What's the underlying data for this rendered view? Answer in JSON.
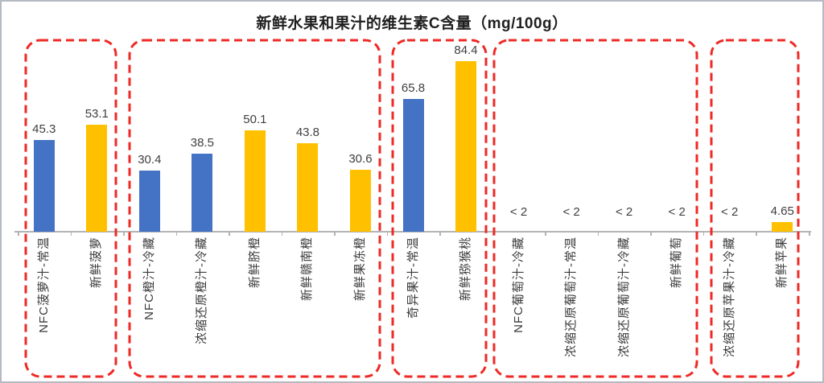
{
  "title": "新鲜水果和果汁的维生素C含量（mg/100g）",
  "colors": {
    "juice_blue": "#4472C4",
    "fruit_yellow": "#FFC000",
    "group_box_red": "#ee2a26",
    "axis_gray": "#b3b3b3",
    "label_gray": "#3f3f3f"
  },
  "chart_data": {
    "type": "bar",
    "title": "新鲜水果和果汁的维生素C含量（mg/100g）",
    "xlabel": "",
    "ylabel": "",
    "ylim": [
      0,
      90
    ],
    "grid": false,
    "legend": "none",
    "categories": [
      "NFC菠萝汁-常温",
      "新鲜菠萝",
      "NFC橙汁-冷藏",
      "浓缩还原橙汁-冷藏",
      "新鲜脐橙",
      "新鲜赣南橙",
      "新鲜果冻橙",
      "奇异果汁-常温",
      "新鲜猕猴桃",
      "NFC葡萄汁-冷藏",
      "浓缩还原葡萄汁-常温",
      "浓缩还原葡萄汁-冷藏",
      "新鲜葡萄",
      "浓缩还原苹果汁-冷藏",
      "新鲜苹果"
    ],
    "items": [
      {
        "label": "NFC菠萝汁-常温",
        "value": 45.3,
        "display": "45.3",
        "color": "juice_blue"
      },
      {
        "label": "新鲜菠萝",
        "value": 53.1,
        "display": "53.1",
        "color": "fruit_yellow"
      },
      {
        "label": "NFC橙汁-冷藏",
        "value": 30.4,
        "display": "30.4",
        "color": "juice_blue"
      },
      {
        "label": "浓缩还原橙汁-冷藏",
        "value": 38.5,
        "display": "38.5",
        "color": "juice_blue"
      },
      {
        "label": "新鲜脐橙",
        "value": 50.1,
        "display": "50.1",
        "color": "fruit_yellow"
      },
      {
        "label": "新鲜赣南橙",
        "value": 43.8,
        "display": "43.8",
        "color": "fruit_yellow"
      },
      {
        "label": "新鲜果冻橙",
        "value": 30.6,
        "display": "30.6",
        "color": "fruit_yellow"
      },
      {
        "label": "奇异果汁-常温",
        "value": 65.8,
        "display": "65.8",
        "color": "juice_blue"
      },
      {
        "label": "新鲜猕猴桃",
        "value": 84.4,
        "display": "84.4",
        "color": "fruit_yellow"
      },
      {
        "label": "NFC葡萄汁-冷藏",
        "value": null,
        "display": "< 2",
        "color": null
      },
      {
        "label": "浓缩还原葡萄汁-常温",
        "value": null,
        "display": "< 2",
        "color": null
      },
      {
        "label": "浓缩还原葡萄汁-冷藏",
        "value": null,
        "display": "< 2",
        "color": null
      },
      {
        "label": "新鲜葡萄",
        "value": null,
        "display": "< 2",
        "color": null
      },
      {
        "label": "浓缩还原苹果汁-冷藏",
        "value": null,
        "display": "< 2",
        "color": null
      },
      {
        "label": "新鲜苹果",
        "value": 4.65,
        "display": "4.65",
        "color": "fruit_yellow"
      }
    ],
    "groups": [
      {
        "name": "pineapple-group",
        "start_index": 0,
        "end_index": 1
      },
      {
        "name": "orange-group",
        "start_index": 2,
        "end_index": 6
      },
      {
        "name": "kiwi-group",
        "start_index": 7,
        "end_index": 8
      },
      {
        "name": "grape-group",
        "start_index": 9,
        "end_index": 12
      },
      {
        "name": "apple-group",
        "start_index": 13,
        "end_index": 14
      }
    ]
  }
}
